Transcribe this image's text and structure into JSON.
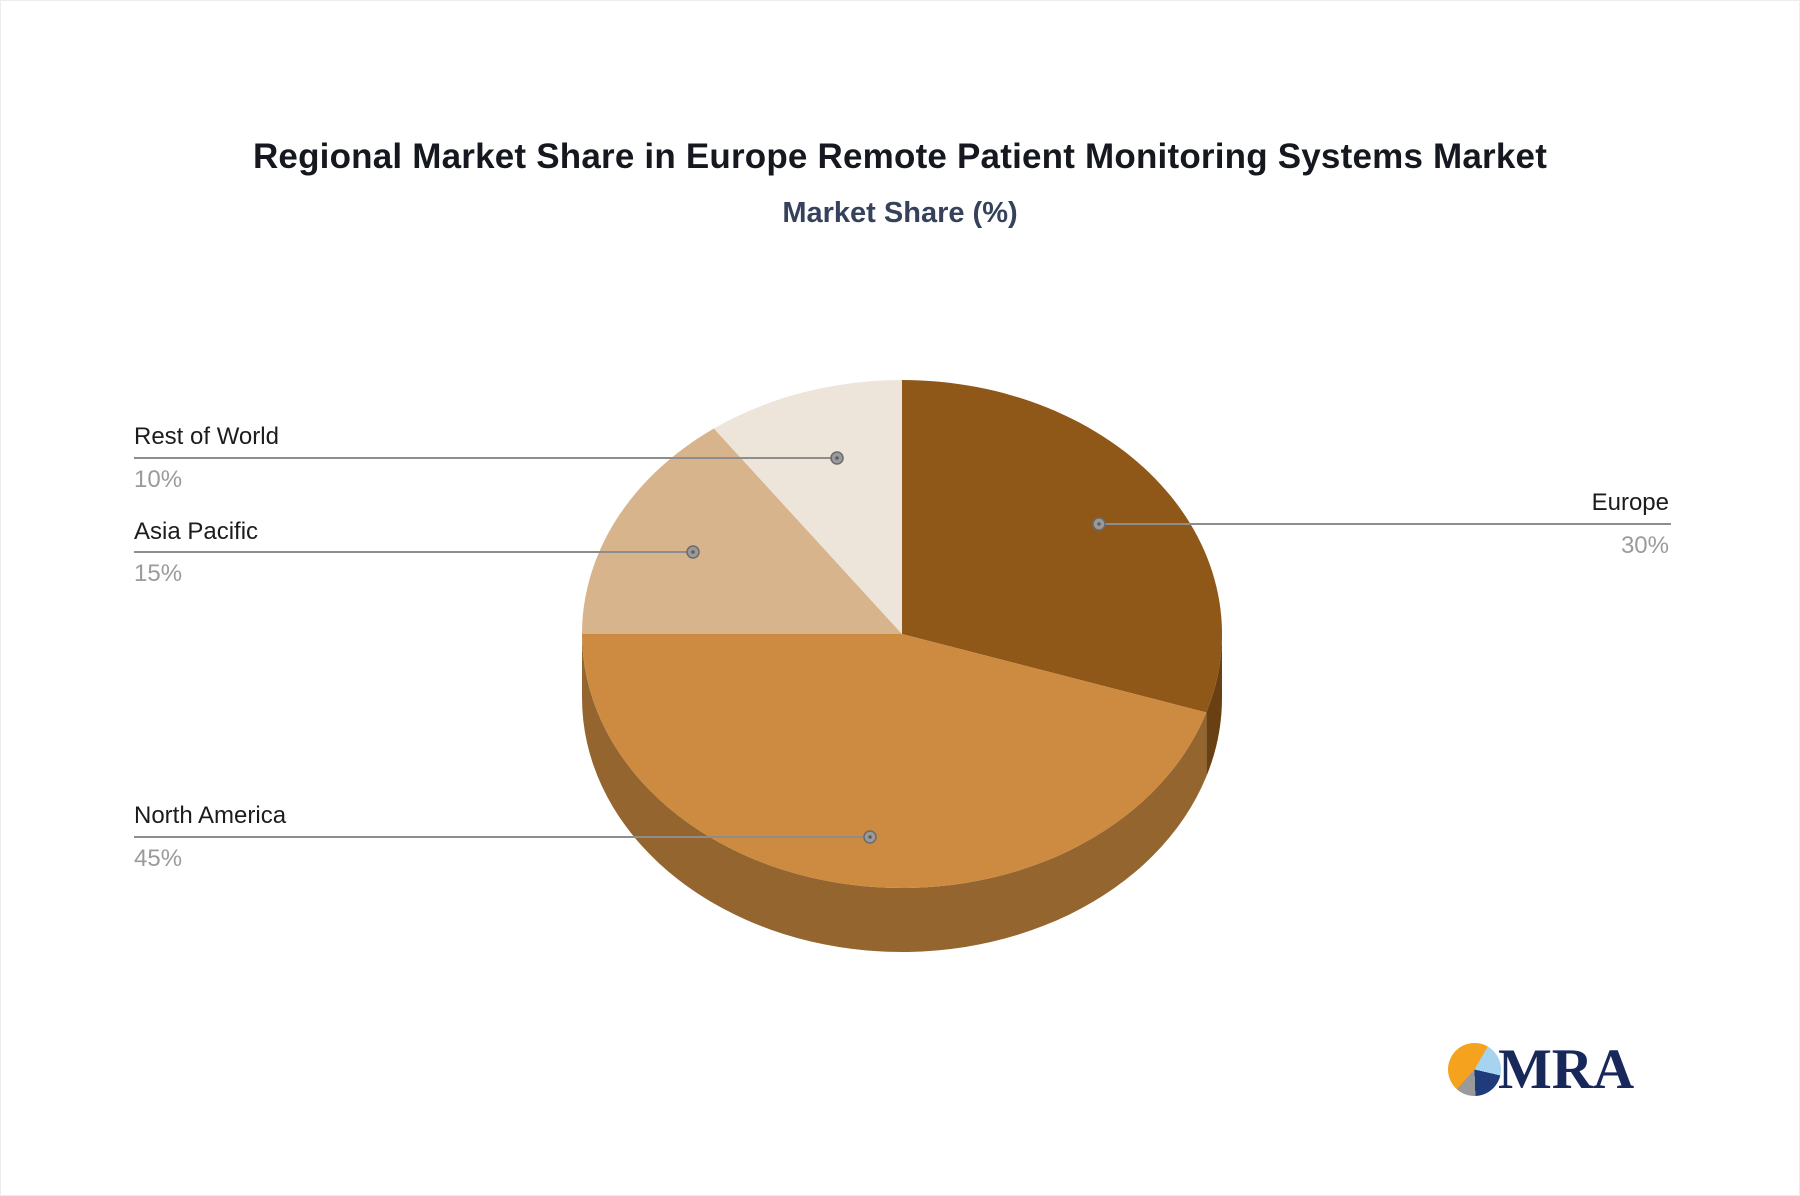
{
  "header": {
    "title": "Regional Market Share in Europe Remote Patient Monitoring Systems Market",
    "subtitle": "Market Share (%)"
  },
  "chart_data": {
    "type": "pie",
    "title": "Regional Market Share in Europe Remote Patient Monitoring Systems Market",
    "subtitle": "Market Share (%)",
    "unit": "%",
    "style": "3d-pie",
    "start_angle_deg": 0,
    "direction": "clockwise",
    "legend_position": "callout-labels",
    "series": [
      {
        "name": "Europe",
        "value": 30,
        "label": "30%",
        "color": "#8F5718",
        "callout_side": "right"
      },
      {
        "name": "North America",
        "value": 45,
        "label": "45%",
        "color": "#CC8B40",
        "callout_side": "left"
      },
      {
        "name": "Asia Pacific",
        "value": 15,
        "label": "15%",
        "color": "#D8B48D",
        "callout_side": "left"
      },
      {
        "name": "Rest of World",
        "value": 10,
        "label": "10%",
        "color": "#EDE4DA",
        "callout_side": "left"
      }
    ],
    "callout_line_color": "#8d8d8d",
    "label_name_color": "#1c1c1e",
    "label_value_color": "#9b9b9b"
  },
  "logo": {
    "text": "MRA",
    "text_color": "#19285A",
    "pie_colors": [
      "#F5A21F",
      "#A6D3F0",
      "#1F3B7C",
      "#9A9A9A"
    ]
  }
}
